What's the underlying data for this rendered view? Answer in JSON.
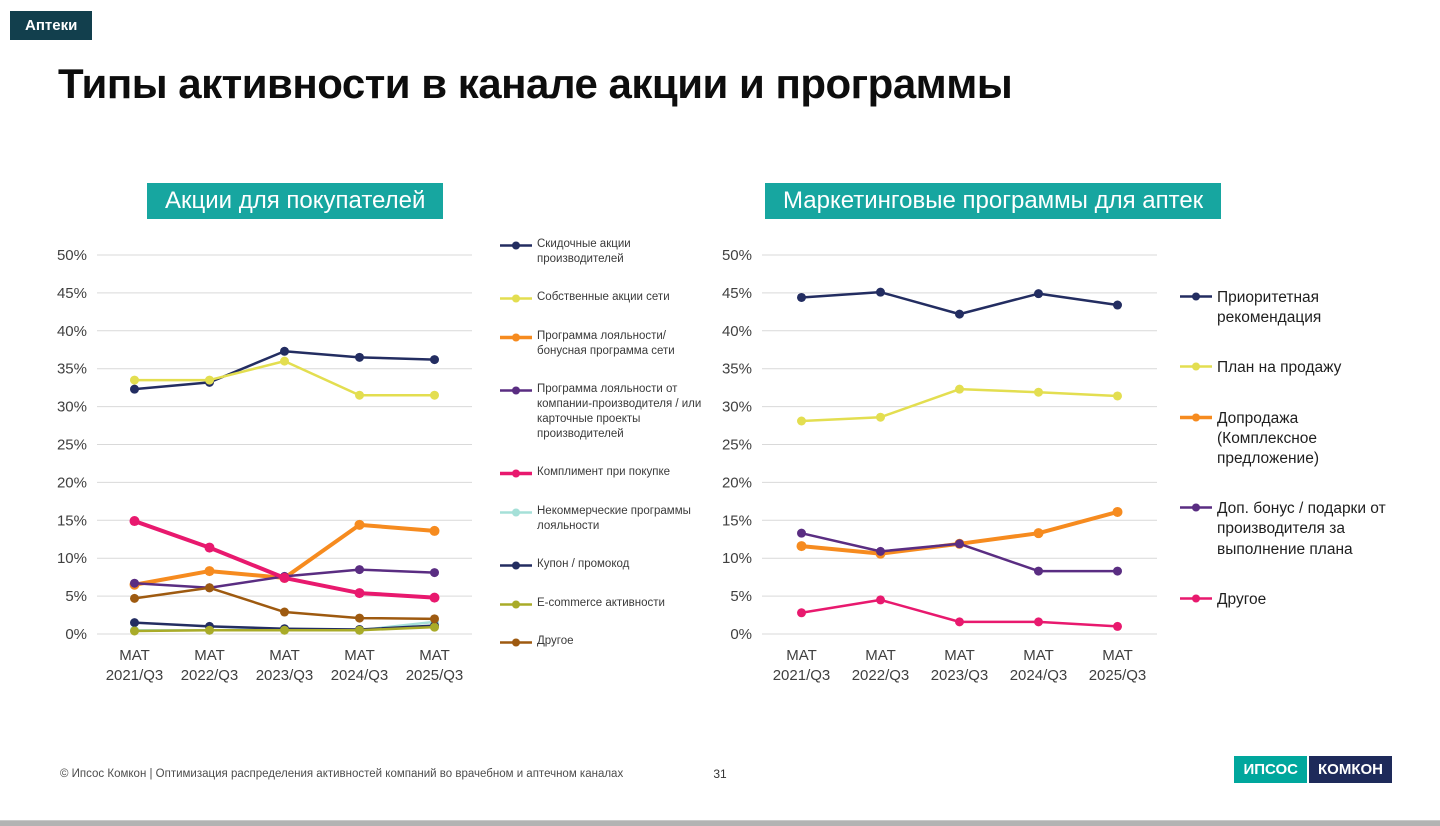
{
  "badge": "Аптеки",
  "title": "Типы активности в канале акции и программы",
  "footer": {
    "text": "© Ипсос Комкон | Оптимизация распределения активностей компаний во врачебном и аптечном каналах",
    "page_number": "31",
    "logo_left": "ИПСОС",
    "logo_right": "КОМКОН"
  },
  "chart_data": [
    {
      "type": "line",
      "title": "Акции для покупателей",
      "categories": [
        "МАТ 2021/Q3",
        "МАТ 2022/Q3",
        "МАТ 2023/Q3",
        "МАТ 2024/Q3",
        "МАТ 2025/Q3"
      ],
      "ylim": [
        0,
        50
      ],
      "ytick_step": 5,
      "ytick_format": "%",
      "grid": true,
      "legend_position": "right",
      "series": [
        {
          "name": "Скидочные акции производителей",
          "color": "#232d61",
          "width": 2.5,
          "values": [
            32.3,
            33.2,
            37.3,
            36.5,
            36.2
          ]
        },
        {
          "name": "Собственные акции сети",
          "color": "#e3de50",
          "width": 2.5,
          "values": [
            33.5,
            33.5,
            36.0,
            31.5,
            31.5
          ]
        },
        {
          "name": "Программа лояльности/бонусная программа сети",
          "color": "#f68b1f",
          "width": 4,
          "values": [
            6.5,
            8.3,
            7.4,
            14.4,
            13.6
          ]
        },
        {
          "name": "Программа лояльности от компании-производителя / или карточные проекты производителей",
          "color": "#5a2d82",
          "width": 2.5,
          "values": [
            6.7,
            6.1,
            7.6,
            8.5,
            8.1
          ]
        },
        {
          "name": "Комплимент при покупке",
          "color": "#e8196e",
          "width": 4,
          "values": [
            14.9,
            11.4,
            7.4,
            5.4,
            4.8
          ]
        },
        {
          "name": "Некоммерческие программы лояльности",
          "color": "#a5e0d8",
          "width": 2.5,
          "values": [
            0.5,
            0.5,
            0.6,
            0.5,
            1.6
          ]
        },
        {
          "name": "Купон / промокод",
          "color": "#232d61",
          "width": 2.5,
          "values": [
            1.5,
            1.0,
            0.7,
            0.6,
            1.1
          ]
        },
        {
          "name": "E-commerce активности",
          "color": "#a9ab28",
          "width": 2.5,
          "values": [
            0.4,
            0.5,
            0.5,
            0.5,
            0.9
          ]
        },
        {
          "name": "Другое",
          "color": "#9e5a10",
          "width": 2.5,
          "values": [
            4.7,
            6.1,
            2.9,
            2.1,
            2.0
          ]
        }
      ]
    },
    {
      "type": "line",
      "title": "Маркетинговые программы для аптек",
      "categories": [
        "МАТ 2021/Q3",
        "МАТ 2022/Q3",
        "МАТ 2023/Q3",
        "МАТ 2024/Q3",
        "МАТ 2025/Q3"
      ],
      "ylim": [
        0,
        50
      ],
      "ytick_step": 5,
      "ytick_format": "%",
      "grid": true,
      "legend_position": "right",
      "series": [
        {
          "name": "Приоритетная рекомендация",
          "color": "#232d61",
          "width": 2.5,
          "values": [
            44.4,
            45.1,
            42.2,
            44.9,
            43.4
          ]
        },
        {
          "name": "План на продажу",
          "color": "#e3de50",
          "width": 2.5,
          "values": [
            28.1,
            28.6,
            32.3,
            31.9,
            31.4
          ]
        },
        {
          "name": "Допродажа (Комплексное предложение)",
          "color": "#f68b1f",
          "width": 4,
          "values": [
            11.6,
            10.6,
            11.9,
            13.3,
            16.1
          ]
        },
        {
          "name": "Доп. бонус / подарки от производителя за выполнение плана",
          "color": "#5a2d82",
          "width": 2.5,
          "values": [
            13.3,
            10.9,
            11.9,
            8.3,
            8.3
          ]
        },
        {
          "name": "Другое",
          "color": "#e8196e",
          "width": 2.5,
          "values": [
            2.8,
            4.5,
            1.6,
            1.6,
            1.0
          ]
        }
      ]
    }
  ]
}
